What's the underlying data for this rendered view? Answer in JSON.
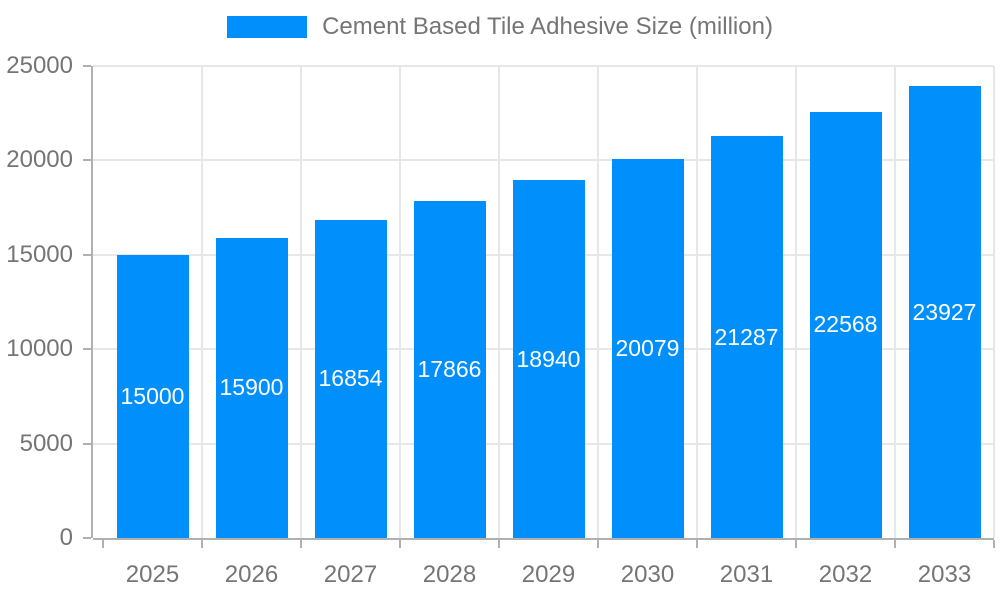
{
  "chart_data": {
    "type": "bar",
    "legend": "Cement Based Tile Adhesive Size (million)",
    "categories": [
      "2025",
      "2026",
      "2027",
      "2028",
      "2029",
      "2030",
      "2031",
      "2032",
      "2033"
    ],
    "values": [
      15000,
      15900,
      16854,
      17866,
      18940,
      20079,
      21287,
      22568,
      23927
    ],
    "ylim": [
      0,
      25000
    ],
    "yticks": [
      0,
      5000,
      10000,
      15000,
      20000,
      25000
    ],
    "grid": true,
    "legend_position": "top-center",
    "bar_value_labels": true,
    "colors": {
      "bar": "#008ffb",
      "axis": "#b0b0b0",
      "grid": "#e7e7e7",
      "tick_label": "#757575",
      "value_label": "#ffffff",
      "background": "#ffffff"
    }
  }
}
